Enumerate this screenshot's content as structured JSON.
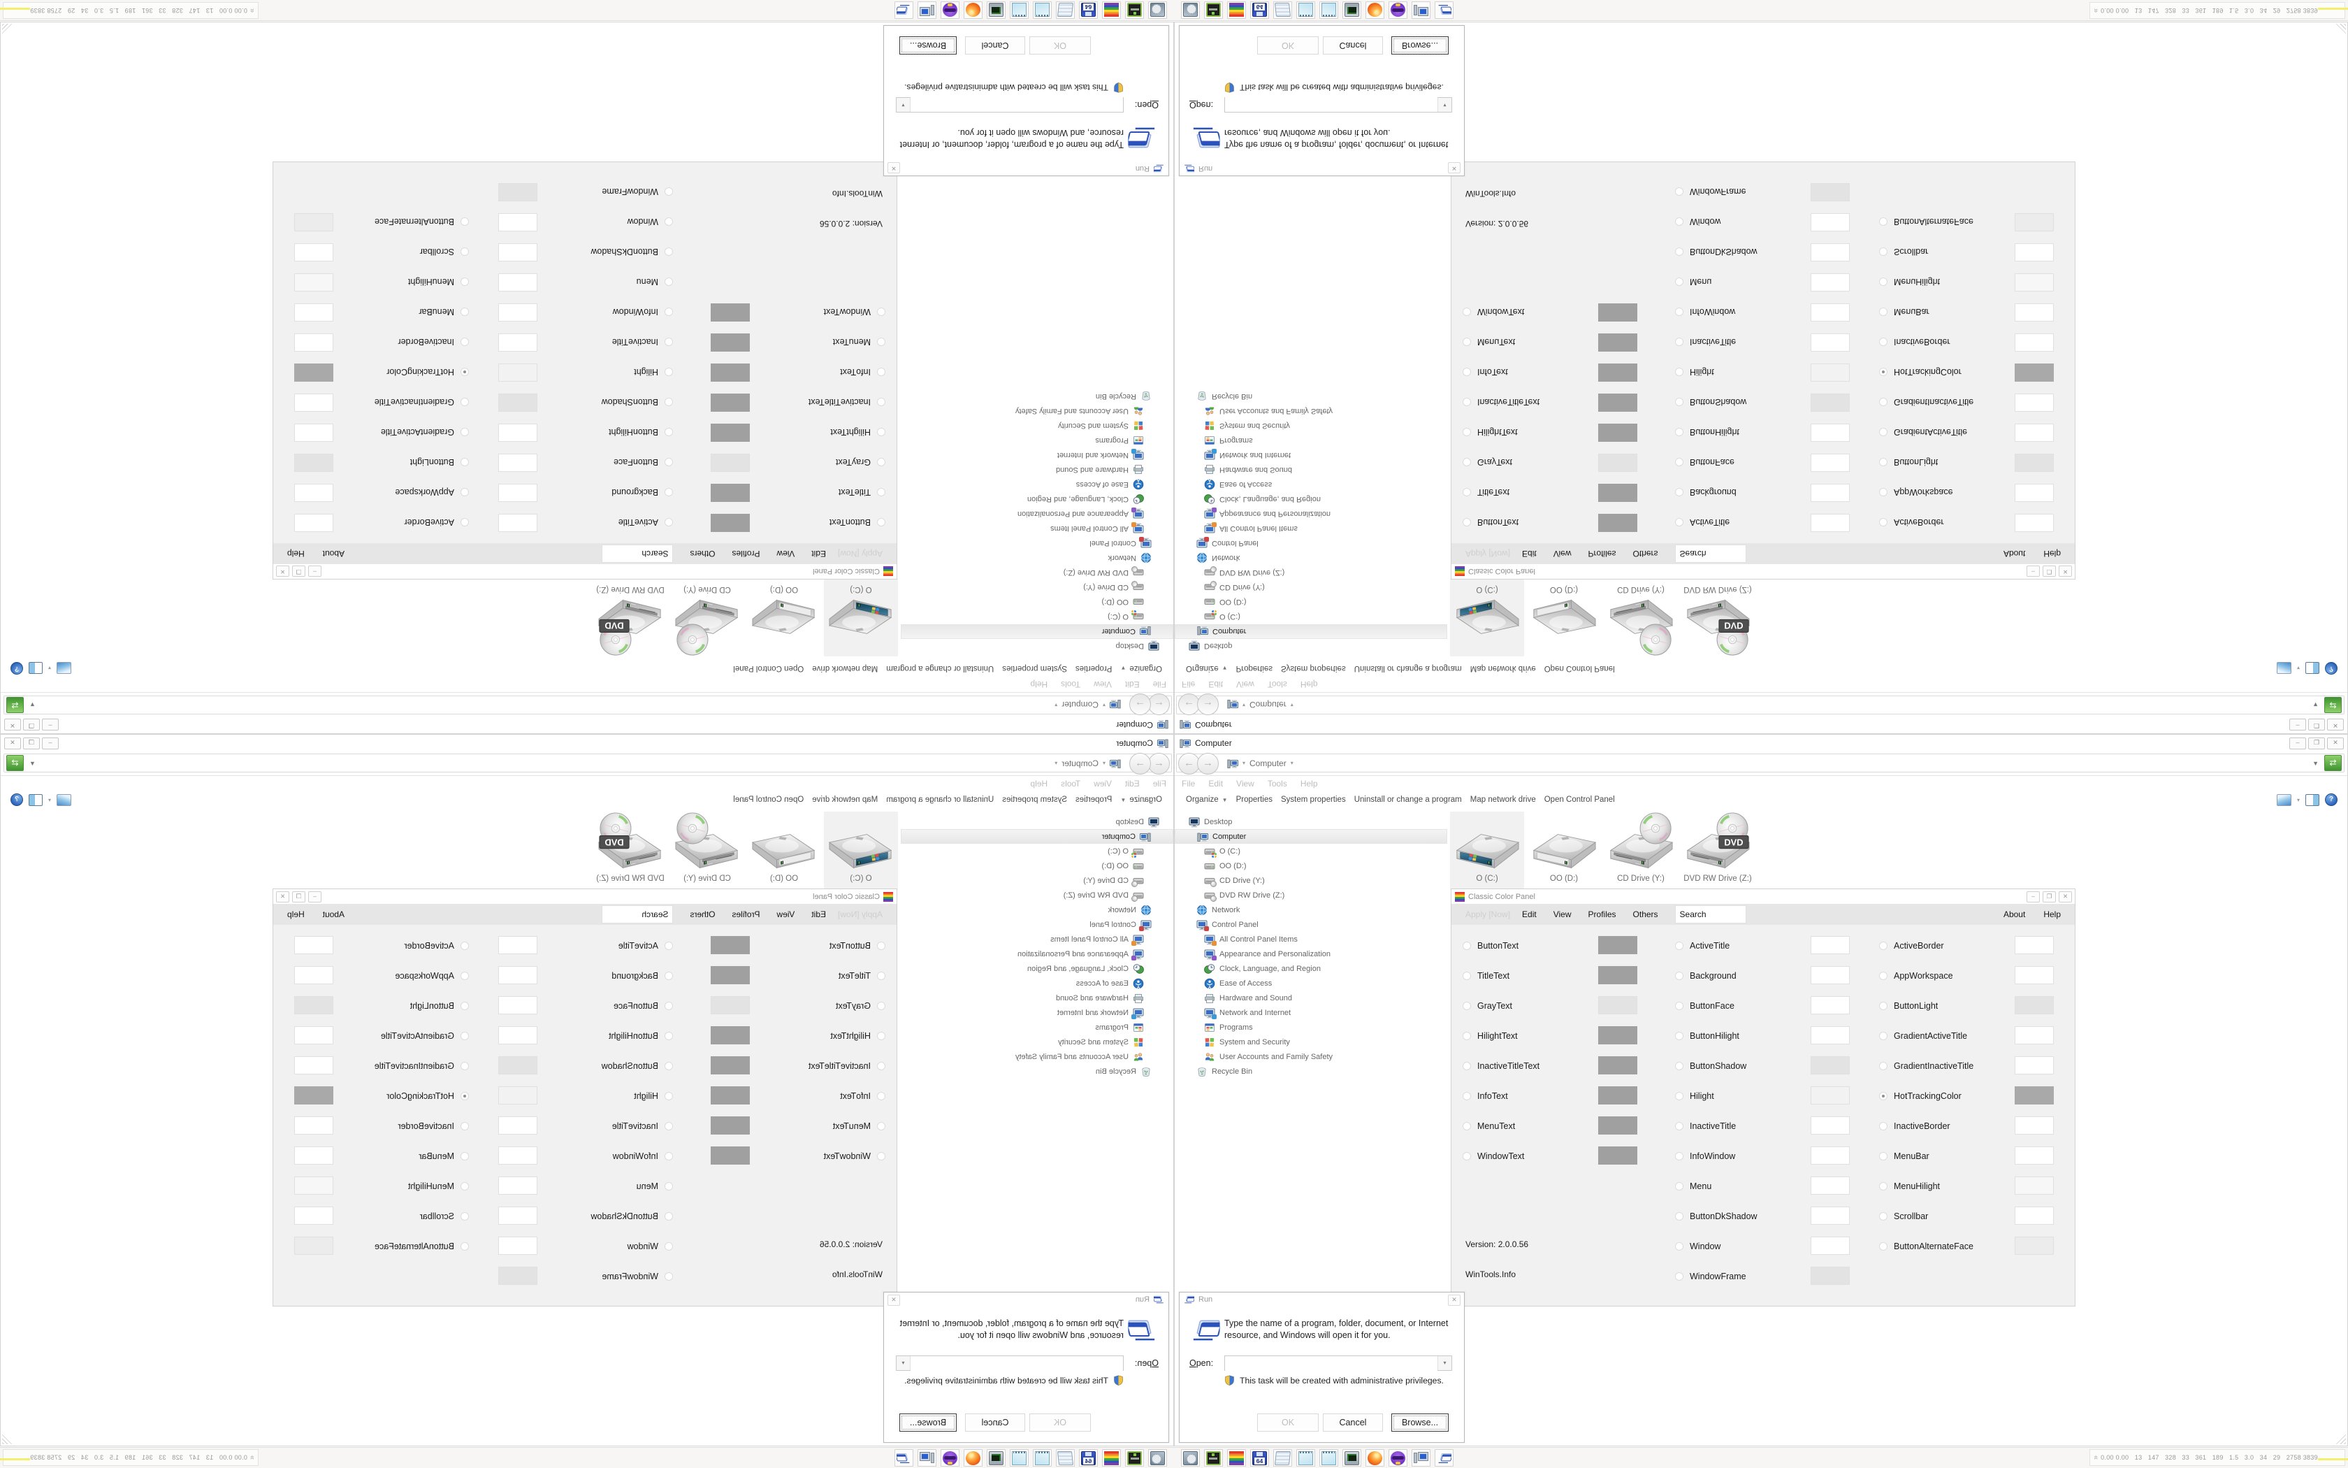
{
  "glyphs": {
    "minimize": "–",
    "restore": "❐",
    "close": "✕",
    "back": "←",
    "forward": "→",
    "caret": "▾",
    "caret_big": "▼",
    "refresh": "⇄",
    "help": "?",
    "tray_expand": "«"
  },
  "explorer": {
    "title": "Computer",
    "breadcrumb": "Computer",
    "menu_items": [
      "File",
      "Edit",
      "View",
      "Tools",
      "Help"
    ],
    "command_bar": {
      "organize": "Organize",
      "items": [
        "Properties",
        "System properties",
        "Uninstall or change a program",
        "Map network drive",
        "Open Control Panel"
      ]
    },
    "nav_tree": [
      {
        "label": "Desktop",
        "icon": "monitor-dark",
        "depth": 0
      },
      {
        "label": "Computer",
        "icon": "computer",
        "depth": 1,
        "selected": true
      },
      {
        "label": "O (C:)",
        "icon": "drive16",
        "badge": "flag",
        "depth": 2
      },
      {
        "label": "OO (D:)",
        "icon": "drive16",
        "depth": 2
      },
      {
        "label": "CD Drive (Y:)",
        "icon": "drive16",
        "badge": "disc",
        "depth": 2
      },
      {
        "label": "DVD RW Drive (Z:)",
        "icon": "drive16",
        "badge": "disc",
        "depth": 2
      },
      {
        "label": "Network",
        "icon": "globe16",
        "depth": 1
      },
      {
        "label": "Control Panel",
        "icon": "monitor",
        "badge": "dot:#cc4444",
        "depth": 1
      },
      {
        "label": "All Control Panel Items",
        "icon": "monitor",
        "badge": "dot:#e8913a",
        "depth": 2
      },
      {
        "label": "Appearance and Personalization",
        "icon": "monitor",
        "badge": "dot:#8a5ac2",
        "depth": 2
      },
      {
        "label": "Clock, Language, and Region",
        "icon": "clock16",
        "depth": 2
      },
      {
        "label": "Ease of Access",
        "icon": "ease16",
        "depth": 2
      },
      {
        "label": "Hardware and Sound",
        "icon": "printer16",
        "depth": 2
      },
      {
        "label": "Network and Internet",
        "icon": "monitor",
        "badge": "dot:#3b9ad6",
        "depth": 2
      },
      {
        "label": "Programs",
        "icon": "programs16",
        "depth": 2
      },
      {
        "label": "System and Security",
        "icon": "syssec16",
        "depth": 2
      },
      {
        "label": "User Accounts and Family Safety",
        "icon": "people16",
        "depth": 2
      },
      {
        "label": "Recycle Bin",
        "icon": "bin16",
        "depth": 1
      }
    ],
    "drives": [
      {
        "label": "O (C:)",
        "kind": "hdd-windows",
        "selected": true
      },
      {
        "label": "OO (D:)",
        "kind": "hdd"
      },
      {
        "label": "CD Drive (Y:)",
        "kind": "optical"
      },
      {
        "label": "DVD RW Drive (Z:)",
        "kind": "optical-dvd"
      }
    ],
    "dvd_badge": "DVD"
  },
  "ccp": {
    "title": "Classic Color Panel",
    "menu": {
      "apply": "Apply [Now]",
      "items": [
        "Edit",
        "View",
        "Profiles",
        "Others"
      ],
      "search": "Search",
      "right": [
        "About",
        "Help"
      ]
    },
    "columns": [
      [
        {
          "label": "ButtonText",
          "swatch": "#a0a0a0"
        },
        {
          "label": "TitleText",
          "swatch": "#a0a0a0"
        },
        {
          "label": "GrayText",
          "swatch": "#e3e3e3"
        },
        {
          "label": "HilightText",
          "swatch": "#a0a0a0"
        },
        {
          "label": "InactiveTitleText",
          "swatch": "#a0a0a0"
        },
        {
          "label": "InfoText",
          "swatch": "#a0a0a0"
        },
        {
          "label": "MenuText",
          "swatch": "#a0a0a0"
        },
        {
          "label": "WindowText",
          "swatch": "#a0a0a0"
        }
      ],
      [
        {
          "label": "ActiveTitle",
          "swatch": "#ffffff"
        },
        {
          "label": "Background",
          "swatch": "#ffffff"
        },
        {
          "label": "ButtonFace",
          "swatch": "#ffffff"
        },
        {
          "label": "ButtonHilight",
          "swatch": "#ffffff"
        },
        {
          "label": "ButtonShadow",
          "swatch": "#e3e3e3"
        },
        {
          "label": "Hilight",
          "swatch": "#f2f2f2"
        },
        {
          "label": "InactiveTitle",
          "swatch": "#ffffff"
        },
        {
          "label": "InfoWindow",
          "swatch": "#ffffff"
        },
        {
          "label": "Menu",
          "swatch": "#ffffff"
        },
        {
          "label": "ButtonDkShadow",
          "swatch": "#ffffff"
        },
        {
          "label": "Window",
          "swatch": "#ffffff"
        },
        {
          "label": "WindowFrame",
          "swatch": "#e3e3e3"
        }
      ],
      [
        {
          "label": "ActiveBorder",
          "swatch": "#ffffff"
        },
        {
          "label": "AppWorkspace",
          "swatch": "#ffffff"
        },
        {
          "label": "ButtonLight",
          "swatch": "#e3e3e3"
        },
        {
          "label": "GradientActiveTitle",
          "swatch": "#ffffff"
        },
        {
          "label": "GradientInactiveTitle",
          "swatch": "#ffffff"
        },
        {
          "label": "HotTrackingColor",
          "swatch": "#a9a9a9",
          "selected": true
        },
        {
          "label": "InactiveBorder",
          "swatch": "#ffffff"
        },
        {
          "label": "MenuBar",
          "swatch": "#ffffff"
        },
        {
          "label": "MenuHilight",
          "swatch": "#f7f7f7"
        },
        {
          "label": "Scrollbar",
          "swatch": "#ffffff"
        },
        {
          "label": "ButtonAlternateFace",
          "swatch": "#ececec"
        }
      ]
    ],
    "version": "Version: 2.0.0.56",
    "credit": "WinTools.Info"
  },
  "run": {
    "title": "Run",
    "description": "Type the name of a program, folder, document, or Internet resource, and Windows will open it for you.",
    "open_label": "Open:",
    "open_value": "",
    "admin_note": "This task will be created with administrative privileges.",
    "ok": "OK",
    "cancel": "Cancel",
    "browse": "Browse..."
  },
  "taskbar": {
    "icons": [
      "pc-gear",
      "dark-drive",
      "color-panel",
      "floppy-64",
      "scroll",
      "notepad",
      "notepad-2",
      "console",
      "firefox",
      "purple-app",
      "computer",
      "run"
    ],
    "floppy_label": "64",
    "tray_readout": "0.00 0.00   13   147   328   33   361   189   1.5   3.0   34   29   2758 3839"
  }
}
